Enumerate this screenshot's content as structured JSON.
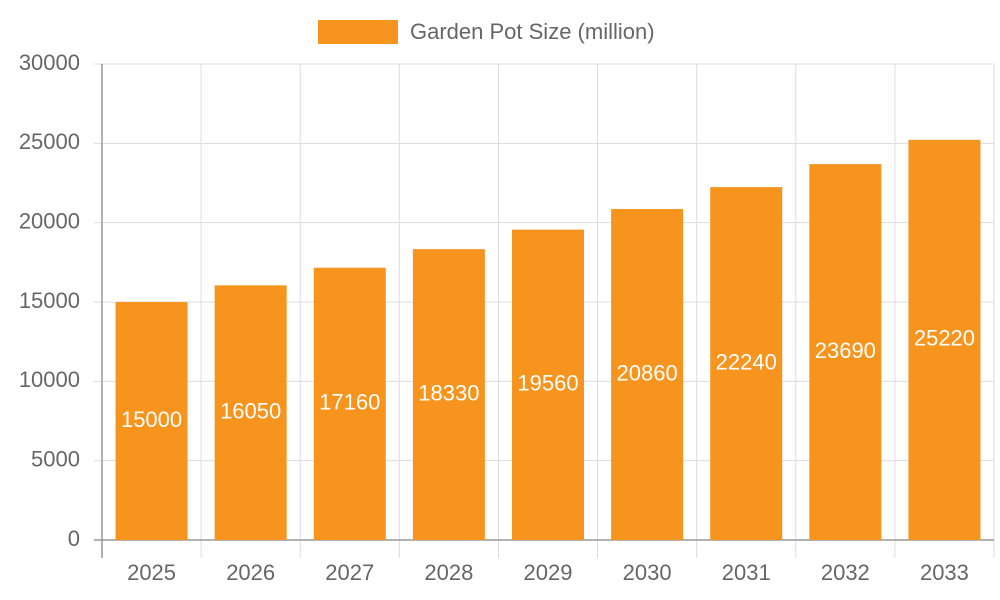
{
  "chart_data": {
    "type": "bar",
    "categories": [
      "2025",
      "2026",
      "2027",
      "2028",
      "2029",
      "2030",
      "2031",
      "2032",
      "2033"
    ],
    "series": [
      {
        "name": "Garden Pot Size (million)",
        "color": "#f7941d",
        "values": [
          15000,
          16050,
          17160,
          18330,
          19560,
          20860,
          22240,
          23690,
          25220
        ]
      }
    ],
    "ylim": [
      0,
      30000
    ],
    "yticks": [
      0,
      5000,
      10000,
      15000,
      20000,
      25000,
      30000
    ],
    "grid": true,
    "legend": "top"
  }
}
